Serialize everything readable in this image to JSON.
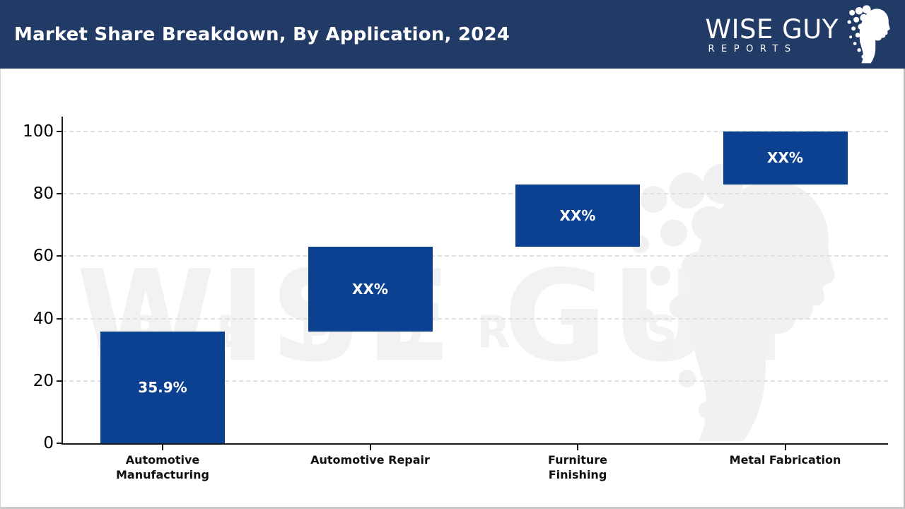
{
  "header": {
    "title": "Market Share Breakdown, By Application, 2024",
    "logo": {
      "name": "WISE GUY",
      "sub": "REPORTS"
    }
  },
  "watermark": {
    "name": "WISE GUY",
    "sub": "REPORTS"
  },
  "chart_data": {
    "type": "bar",
    "subtype": "waterfall-floating-bars",
    "title": "Market Share Breakdown, By Application, 2024",
    "categories": [
      "Automotive Manufacturing",
      "Automotive Repair",
      "Furniture Finishing",
      "Metal Fabrication"
    ],
    "category_lines": [
      [
        "Automotive",
        "Manufacturing"
      ],
      [
        "Automotive Repair"
      ],
      [
        "Furniture",
        "Finishing"
      ],
      [
        "Metal Fabrication"
      ]
    ],
    "segments": [
      {
        "category": "Automotive Manufacturing",
        "start": 0,
        "end": 35.9,
        "label": "35.9%"
      },
      {
        "category": "Automotive Repair",
        "start": 35.9,
        "end": 63,
        "label": "XX%"
      },
      {
        "category": "Furniture Finishing",
        "start": 63,
        "end": 83,
        "label": "XX%"
      },
      {
        "category": "Metal Fabrication",
        "start": 83,
        "end": 100,
        "label": "XX%"
      }
    ],
    "yticks": [
      0,
      20,
      40,
      60,
      80,
      100
    ],
    "ylim": [
      0,
      104.8
    ],
    "xlabel": "",
    "ylabel": "",
    "grid": "horizontal-dashed",
    "legend": "none"
  },
  "colors": {
    "header_bg": "#213a66",
    "bar": "#0c4191",
    "grid": "#e0e0e0",
    "axis": "#1a1a1a",
    "bar_label": "#ffffff",
    "watermark": "#f2f2f4",
    "border": "#c9c9c9"
  }
}
